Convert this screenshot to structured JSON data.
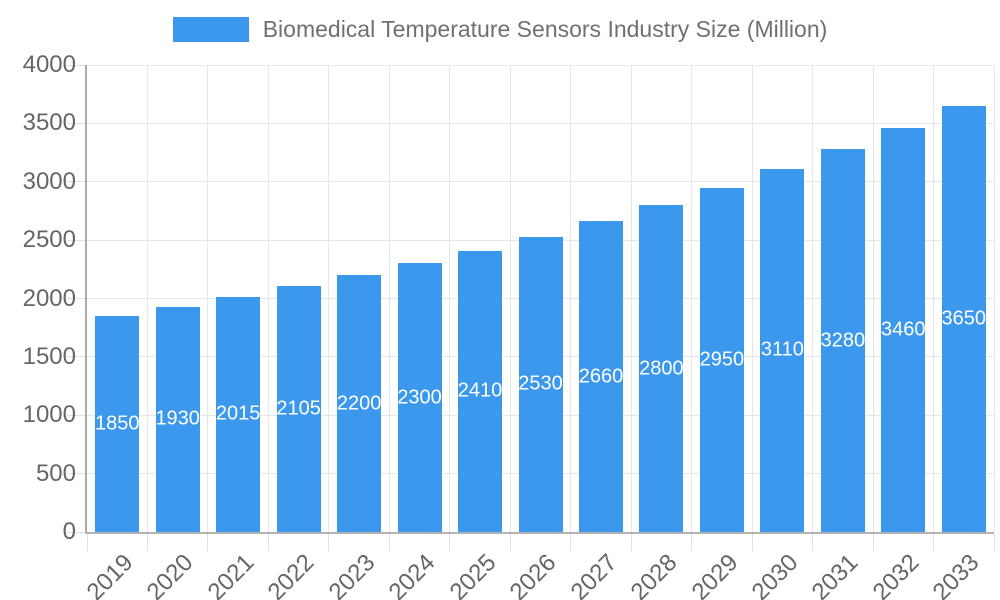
{
  "legend": {
    "label": "Biomedical Temperature Sensors Industry Size (Million)",
    "swatch_color": "#3b98ec"
  },
  "chart_data": {
    "type": "bar",
    "title": "Biomedical Temperature Sensors Industry Size (Million)",
    "categories": [
      "2019",
      "2020",
      "2021",
      "2022",
      "2023",
      "2024",
      "2025",
      "2026",
      "2027",
      "2028",
      "2029",
      "2030",
      "2031",
      "2032",
      "2033"
    ],
    "values": [
      1850,
      1930,
      2015,
      2105,
      2200,
      2300,
      2410,
      2530,
      2660,
      2800,
      2950,
      3110,
      3280,
      3460,
      3650
    ],
    "series": [
      {
        "name": "Biomedical Temperature Sensors Industry Size (Million)",
        "values": [
          1850,
          1930,
          2015,
          2105,
          2200,
          2300,
          2410,
          2530,
          2660,
          2800,
          2950,
          3110,
          3280,
          3460,
          3650
        ]
      }
    ],
    "xlabel": "",
    "ylabel": "",
    "ylim": [
      0,
      4000
    ],
    "yticks": [
      0,
      500,
      1000,
      1500,
      2000,
      2500,
      3000,
      3500,
      4000
    ],
    "grid": true,
    "legend_position": "top-center",
    "value_labels_position": "inside-center",
    "x_tick_rotation_deg": -45
  },
  "colors": {
    "bar": "#3b98ec",
    "grid": "#e7e7e7",
    "tick": "#e0e0e0",
    "axis": "#ababab",
    "axis_text": "#666666",
    "title_text": "#707070",
    "value_label_text": "#ffffff",
    "background": "#ffffff"
  }
}
